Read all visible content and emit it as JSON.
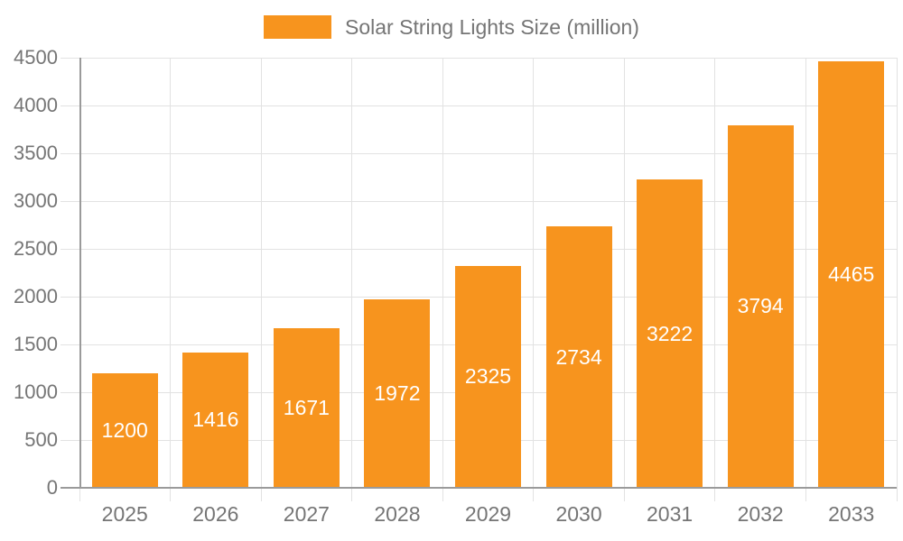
{
  "chart_data": {
    "type": "bar",
    "title": "Solar String Lights Size (million)",
    "legend": "Solar String Lights Size (million)",
    "legend_position": "top",
    "categories": [
      "2025",
      "2026",
      "2027",
      "2028",
      "2029",
      "2030",
      "2031",
      "2032",
      "2033"
    ],
    "series": [
      {
        "name": "Solar String Lights Size (million)",
        "values": [
          1200,
          1416,
          1671,
          1972,
          2325,
          2734,
          3222,
          3794,
          4465
        ]
      }
    ],
    "value_labels_shown": true,
    "xlabel": "",
    "ylabel": "",
    "ylim": [
      0,
      4500
    ],
    "yticks": [
      0,
      500,
      1000,
      1500,
      2000,
      2500,
      3000,
      3500,
      4000,
      4500
    ],
    "grid": true,
    "colors": {
      "bar": "#F7941E",
      "bar_value_label": "#FFFFFF",
      "axis_text": "#757575",
      "legend_text": "#757575",
      "gridline": "#E2E2E2",
      "axis_line": "#9A9A9A"
    }
  }
}
